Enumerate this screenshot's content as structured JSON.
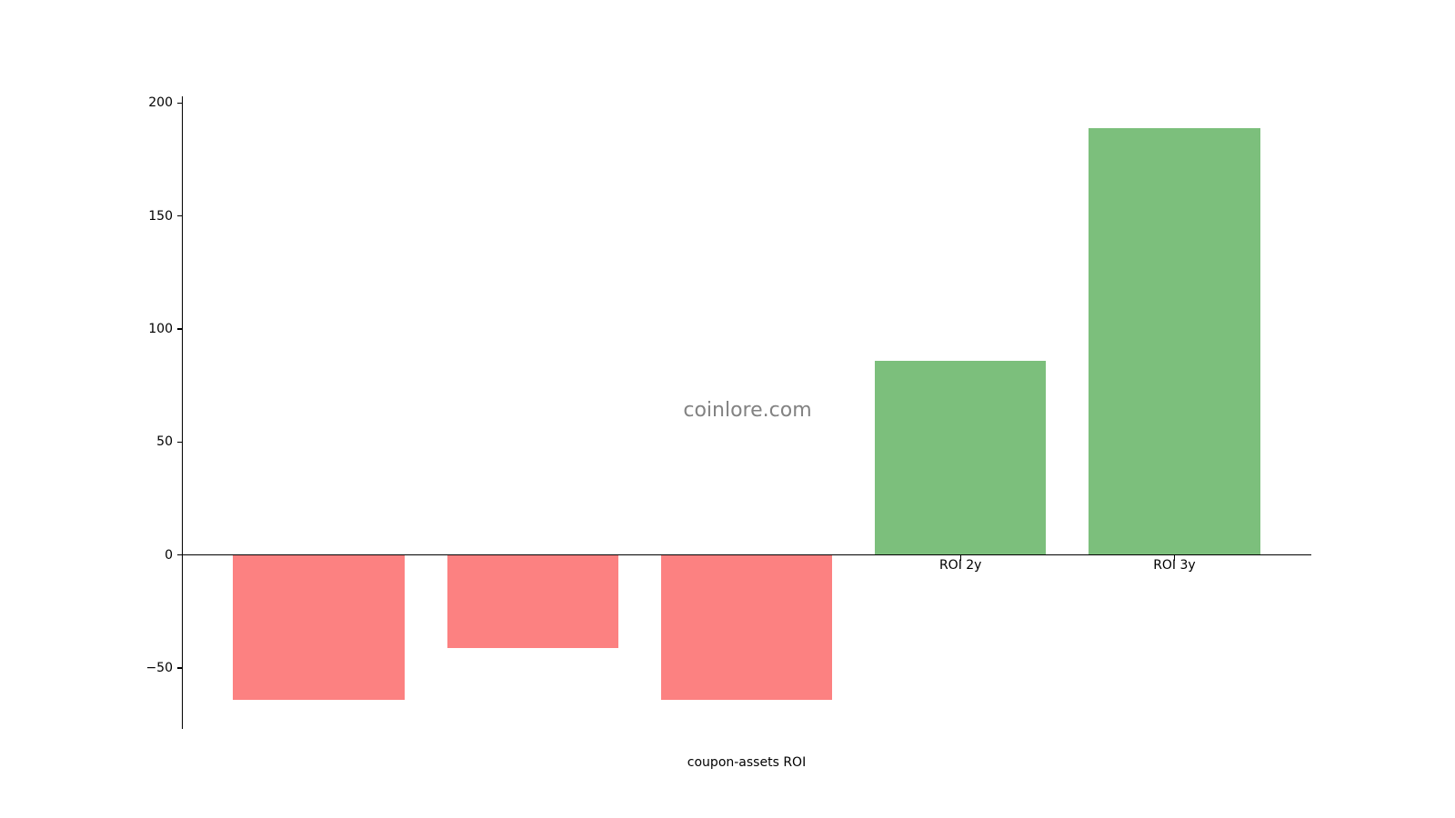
{
  "watermark": {
    "text": "coinlore.com",
    "color": "#828282"
  },
  "chart_data": {
    "type": "bar",
    "title": "",
    "xlabel": "coupon-assets ROI",
    "ylabel": "",
    "categories": [
      "",
      "",
      "",
      "ROI 2y",
      "ROI 3y"
    ],
    "values": [
      -64,
      -41,
      -64,
      86,
      189
    ],
    "yticks": [
      200,
      150,
      100,
      50,
      0,
      -50
    ],
    "ytick_labels": [
      "200",
      "150",
      "100",
      "50",
      "0",
      "−50"
    ],
    "ylim": [
      -77,
      203
    ],
    "xlim": [
      -0.64,
      4.64
    ],
    "bar_width": 0.8,
    "grid": false,
    "legend": "none",
    "positive_color": "#7cbf7c",
    "negative_color": "#fc8181",
    "axis_color": "#000000",
    "tick_label_color": "#000000"
  }
}
